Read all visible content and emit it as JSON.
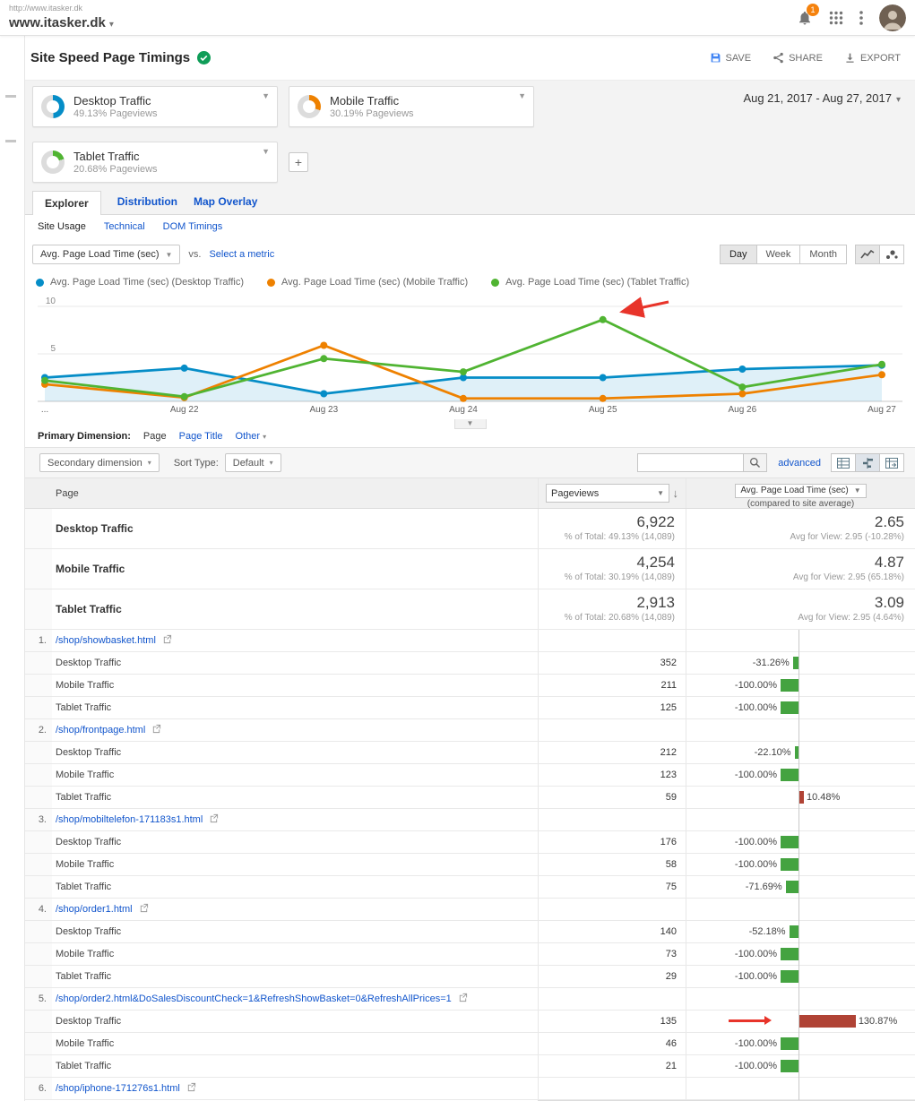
{
  "topbar": {
    "url": "http://www.itasker.dk",
    "site_name": "www.itasker.dk",
    "notification_count": "1"
  },
  "report": {
    "title": "Site Speed Page Timings",
    "actions": {
      "save": "SAVE",
      "share": "SHARE",
      "export": "EXPORT"
    },
    "date_range": "Aug 21, 2017 - Aug 27, 2017"
  },
  "segments": [
    {
      "name": "Desktop Traffic",
      "detail": "49.13% Pageviews",
      "pct": 49.13,
      "color": "#058dc7"
    },
    {
      "name": "Mobile Traffic",
      "detail": "30.19% Pageviews",
      "pct": 30.19,
      "color": "#ee8100"
    },
    {
      "name": "Tablet Traffic",
      "detail": "20.68% Pageviews",
      "pct": 20.68,
      "color": "#50b432"
    }
  ],
  "add_segment_label": "+",
  "tabs": {
    "explorer": "Explorer",
    "distribution": "Distribution",
    "map_overlay": "Map Overlay"
  },
  "subtabs": {
    "site_usage": "Site Usage",
    "technical": "Technical",
    "dom_timings": "DOM Timings"
  },
  "metric_bar": {
    "metric": "Avg. Page Load Time (sec)",
    "vs_label": "vs.",
    "select_metric": "Select a metric"
  },
  "granularity": {
    "day": "Day",
    "week": "Week",
    "month": "Month"
  },
  "chart_data": {
    "type": "line",
    "x": [
      "...",
      "Aug 22",
      "Aug 23",
      "Aug 24",
      "Aug 25",
      "Aug 26",
      "Aug 27"
    ],
    "ylim": [
      0,
      10
    ],
    "yticks": [
      5,
      10
    ],
    "grid": true,
    "legend_position": "top",
    "series": [
      {
        "name": "Avg. Page Load Time (sec) (Desktop Traffic)",
        "color": "#058dc7",
        "area": true,
        "values": [
          2.5,
          3.5,
          0.8,
          2.5,
          2.5,
          3.4,
          3.8
        ]
      },
      {
        "name": "Avg. Page Load Time (sec) (Mobile Traffic)",
        "color": "#ee8100",
        "area": false,
        "values": [
          1.8,
          0.4,
          5.9,
          0.3,
          0.3,
          0.8,
          2.8
        ]
      },
      {
        "name": "Avg. Page Load Time (sec) (Tablet Traffic)",
        "color": "#50b432",
        "area": false,
        "values": [
          2.2,
          0.5,
          4.5,
          3.1,
          8.6,
          1.5,
          3.9
        ]
      }
    ],
    "annotation": {
      "type": "red-arrow",
      "points_at": "Tablet Traffic peak on Aug 25"
    }
  },
  "primary_dimension": {
    "label": "Primary Dimension:",
    "selected": "Page",
    "options": [
      "Page Title",
      "Other"
    ]
  },
  "table_controls": {
    "secondary_dimension": "Secondary dimension",
    "sort_type_label": "Sort Type:",
    "sort_type_value": "Default",
    "search_value": "",
    "advanced_link": "advanced"
  },
  "table": {
    "columns": {
      "page": "Page",
      "pageviews": "Pageviews",
      "avg": "Avg. Page Load Time (sec)",
      "avg_note": "(compared to site average)"
    },
    "bar_colors": {
      "negative": "#44a340",
      "positive": "#b04335"
    },
    "summary_rows": [
      {
        "name": "Desktop Traffic",
        "pageviews": "6,922",
        "pageviews_note": "% of Total: 49.13% (14,089)",
        "avg": "2.65",
        "avg_note": "Avg for View: 2.95 (-10.28%)"
      },
      {
        "name": "Mobile Traffic",
        "pageviews": "4,254",
        "pageviews_note": "% of Total: 30.19% (14,089)",
        "avg": "4.87",
        "avg_note": "Avg for View: 2.95 (65.18%)"
      },
      {
        "name": "Tablet Traffic",
        "pageviews": "2,913",
        "pageviews_note": "% of Total: 20.68% (14,089)",
        "avg": "3.09",
        "avg_note": "Avg for View: 2.95 (4.64%)"
      }
    ],
    "rows": [
      {
        "index": "1.",
        "page": "/shop/showbasket.html",
        "segments": [
          {
            "name": "Desktop Traffic",
            "pageviews": "352",
            "delta_label": "-31.26%",
            "delta_pct": -31.26
          },
          {
            "name": "Mobile Traffic",
            "pageviews": "211",
            "delta_label": "-100.00%",
            "delta_pct": -100
          },
          {
            "name": "Tablet Traffic",
            "pageviews": "125",
            "delta_label": "-100.00%",
            "delta_pct": -100
          }
        ]
      },
      {
        "index": "2.",
        "page": "/shop/frontpage.html",
        "segments": [
          {
            "name": "Desktop Traffic",
            "pageviews": "212",
            "delta_label": "-22.10%",
            "delta_pct": -22.1
          },
          {
            "name": "Mobile Traffic",
            "pageviews": "123",
            "delta_label": "-100.00%",
            "delta_pct": -100
          },
          {
            "name": "Tablet Traffic",
            "pageviews": "59",
            "delta_label": "10.48%",
            "delta_pct": 10.48
          }
        ]
      },
      {
        "index": "3.",
        "page": "/shop/mobiltelefon-171183s1.html",
        "segments": [
          {
            "name": "Desktop Traffic",
            "pageviews": "176",
            "delta_label": "-100.00%",
            "delta_pct": -100
          },
          {
            "name": "Mobile Traffic",
            "pageviews": "58",
            "delta_label": "-100.00%",
            "delta_pct": -100
          },
          {
            "name": "Tablet Traffic",
            "pageviews": "75",
            "delta_label": "-71.69%",
            "delta_pct": -71.69
          }
        ]
      },
      {
        "index": "4.",
        "page": "/shop/order1.html",
        "segments": [
          {
            "name": "Desktop Traffic",
            "pageviews": "140",
            "delta_label": "-52.18%",
            "delta_pct": -52.18
          },
          {
            "name": "Mobile Traffic",
            "pageviews": "73",
            "delta_label": "-100.00%",
            "delta_pct": -100
          },
          {
            "name": "Tablet Traffic",
            "pageviews": "29",
            "delta_label": "-100.00%",
            "delta_pct": -100
          }
        ]
      },
      {
        "index": "5.",
        "page": "/shop/order2.html&DoSalesDiscountCheck=1&RefreshShowBasket=0&RefreshAllPrices=1",
        "segments": [
          {
            "name": "Desktop Traffic",
            "pageviews": "135",
            "delta_label": "130.87%",
            "delta_pct": 130.87,
            "arrow": true
          },
          {
            "name": "Mobile Traffic",
            "pageviews": "46",
            "delta_label": "-100.00%",
            "delta_pct": -100
          },
          {
            "name": "Tablet Traffic",
            "pageviews": "21",
            "delta_label": "-100.00%",
            "delta_pct": -100
          }
        ]
      },
      {
        "index": "6.",
        "page": "/shop/iphone-171276s1.html",
        "partial": true,
        "segments": []
      }
    ]
  }
}
